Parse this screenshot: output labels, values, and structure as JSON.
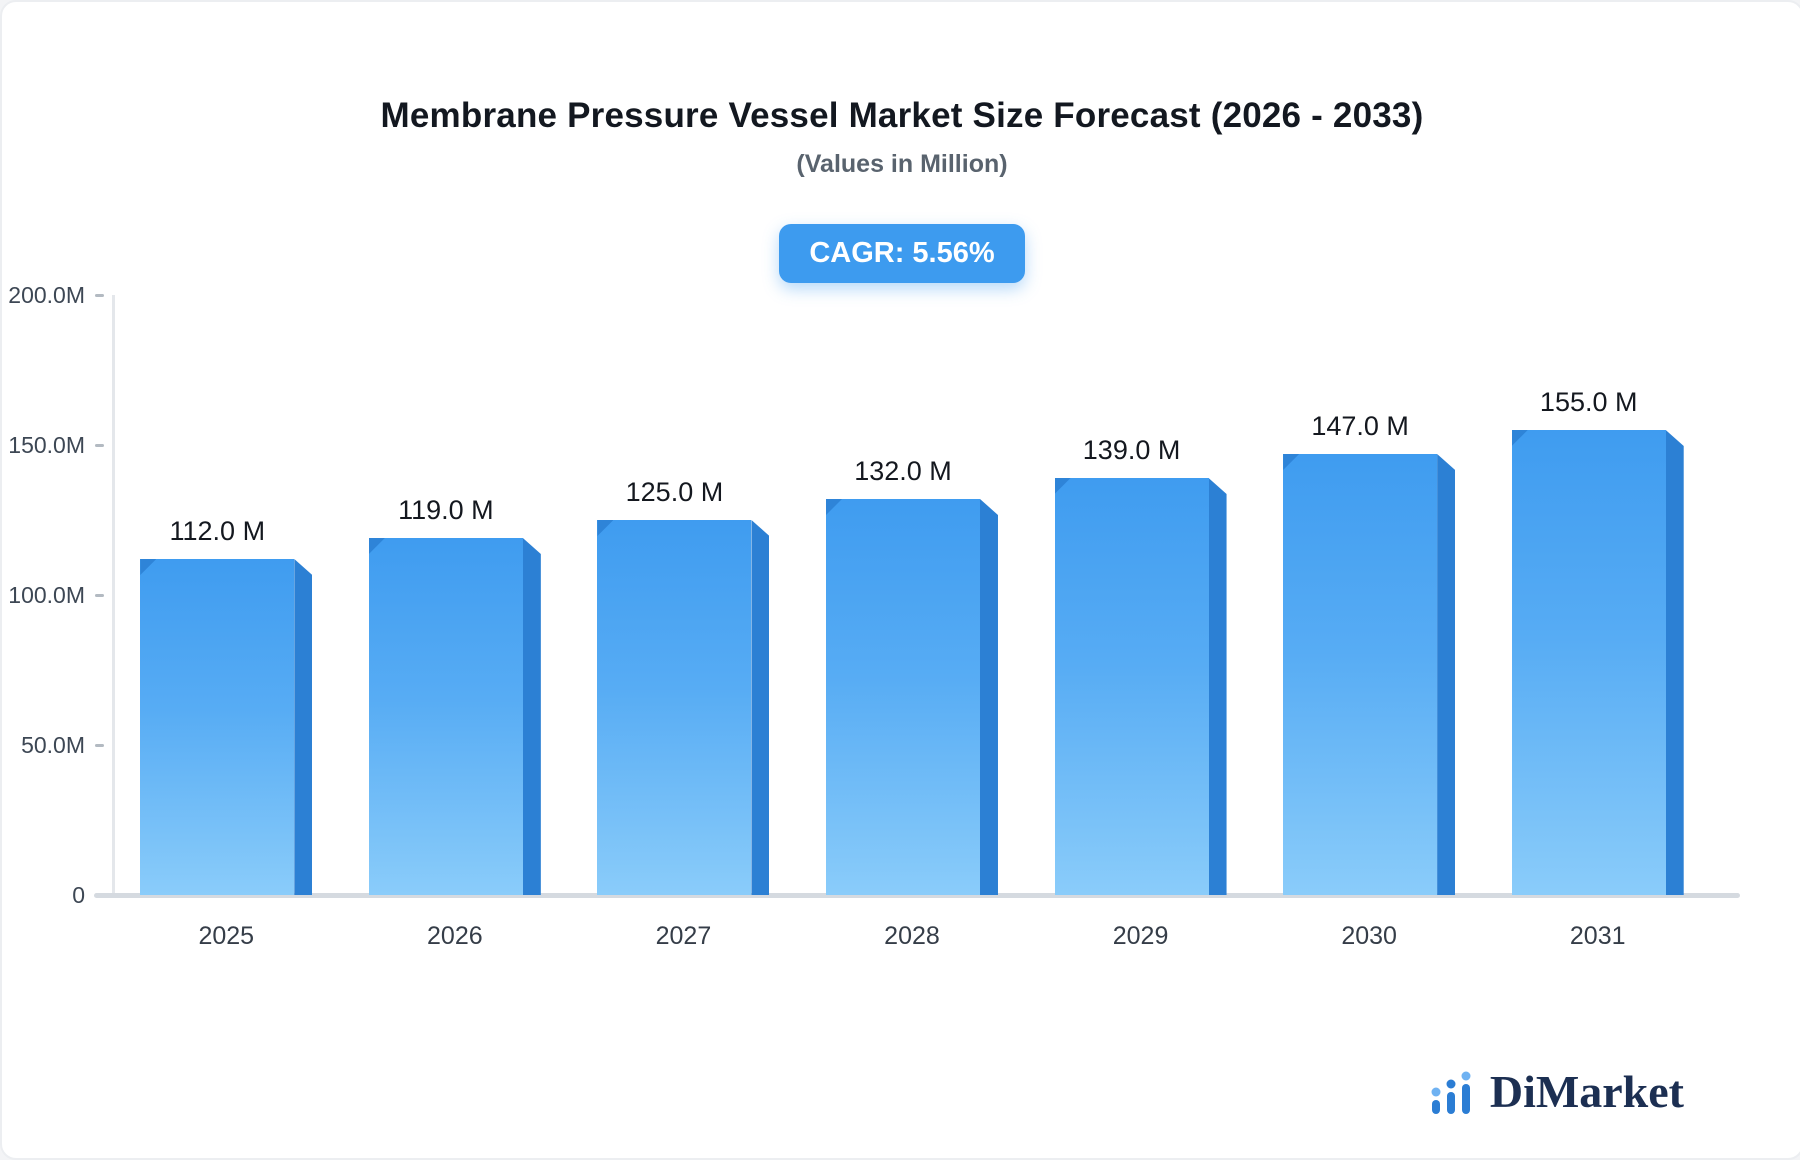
{
  "header": {
    "title": "Membrane Pressure Vessel Market Size Forecast (2026 - 2033)",
    "subtitle": "(Values in Million)",
    "badge_label": "CAGR: 5.56%"
  },
  "logo": {
    "text": "DiMarket",
    "icon": "bar-chart-icon"
  },
  "chart_data": {
    "type": "bar",
    "title": "Membrane Pressure Vessel Market Size Forecast (2026 - 2033)",
    "subtitle": "(Values in Million)",
    "categories": [
      "2025",
      "2026",
      "2027",
      "2028",
      "2029",
      "2030",
      "2031"
    ],
    "values": [
      112,
      119,
      125,
      132,
      139,
      147,
      155
    ],
    "value_labels": [
      "112.0 M",
      "119.0 M",
      "125.0 M",
      "132.0 M",
      "139.0 M",
      "147.0 M",
      "155.0 M"
    ],
    "xlabel": "",
    "ylabel": "",
    "ylim": [
      0,
      200
    ],
    "yticks": [
      {
        "value": 200,
        "label": "200.0M"
      },
      {
        "value": 150,
        "label": "150.0M"
      },
      {
        "value": 100,
        "label": "100.0M"
      },
      {
        "value": 50,
        "label": "50.0M"
      },
      {
        "value": 0,
        "label": "0"
      }
    ],
    "grid": false,
    "legend": false,
    "colors": {
      "face_top": "#3f9cf0",
      "face_mid": "#57acf4",
      "face_bottom": "#8accfa",
      "side": "#2c80d4",
      "accent": "#3d9bef"
    }
  }
}
